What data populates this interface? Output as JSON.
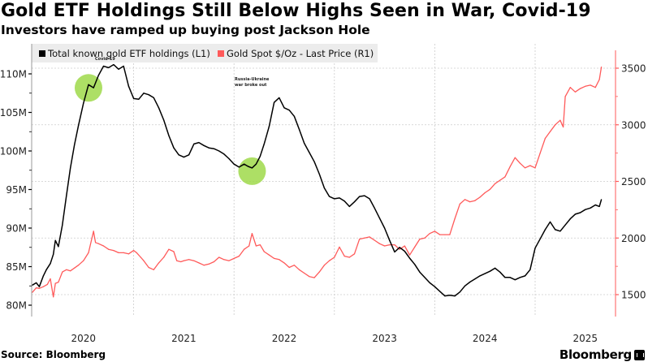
{
  "header": {
    "title": "Gold ETF Holdings Still Below Highs Seen in War, Covid-19",
    "subtitle": "Investors have ramped up buying post Jackson Hole"
  },
  "footer": {
    "source": "Source: Bloomberg",
    "brand": "Bloomberg",
    "brand_icon": "bloomberg-terminal-icon"
  },
  "colors": {
    "etf_line": "#000000",
    "gold_line": "#ff5a5a",
    "right_axis": "#ff5a5a",
    "highlight_circle": "#9fd94a",
    "grid": "#cccccc",
    "legend_bg": "#ececec"
  },
  "chart_data": {
    "type": "line",
    "title": "Gold ETF Holdings Still Below Highs Seen in War, Covid-19",
    "subtitle": "Investors have ramped up buying post Jackson Hole",
    "xlabel": "",
    "x_unit": "year (fractional)",
    "x_ticks": [
      "2020",
      "2021",
      "2022",
      "2023",
      "2024",
      "2025"
    ],
    "xlim": [
      2019.99,
      2025.75
    ],
    "grid": true,
    "legend_position": "top-left",
    "y_axes": {
      "L1": {
        "ticks": [
          "80M",
          "85M",
          "90M",
          "95M",
          "100M",
          "105M",
          "110M"
        ],
        "tick_values": [
          80,
          85,
          90,
          95,
          100,
          105,
          110
        ],
        "ylim": [
          78.2,
          112.8
        ],
        "unit": "million oz"
      },
      "R1": {
        "ticks": [
          "1500",
          "2000",
          "2500",
          "3000",
          "3500"
        ],
        "tick_values": [
          1500,
          2000,
          2500,
          3000,
          3500
        ],
        "ylim": [
          1410,
          3620
        ],
        "unit": "USD/oz"
      }
    },
    "series": [
      {
        "name": "Total known gold ETF holdings (L1)",
        "axis": "L1",
        "x": [
          2019.99,
          2020.03,
          2020.06,
          2020.1,
          2020.13,
          2020.17,
          2020.2,
          2020.22,
          2020.25,
          2020.29,
          2020.33,
          2020.37,
          2020.41,
          2020.45,
          2020.5,
          2020.55,
          2020.6,
          2020.65,
          2020.7,
          2020.75,
          2020.8,
          2020.85,
          2020.9,
          2020.95,
          2021.0,
          2021.05,
          2021.1,
          2021.15,
          2021.2,
          2021.25,
          2021.3,
          2021.35,
          2021.4,
          2021.45,
          2021.5,
          2021.55,
          2021.6,
          2021.65,
          2021.7,
          2021.75,
          2021.8,
          2021.85,
          2021.9,
          2021.95,
          2022.0,
          2022.05,
          2022.1,
          2022.14,
          2022.18,
          2022.22,
          2022.26,
          2022.3,
          2022.35,
          2022.4,
          2022.45,
          2022.5,
          2022.55,
          2022.6,
          2022.65,
          2022.7,
          2022.75,
          2022.8,
          2022.85,
          2022.9,
          2022.95,
          2023.0,
          2023.05,
          2023.1,
          2023.15,
          2023.2,
          2023.25,
          2023.3,
          2023.35,
          2023.4,
          2023.45,
          2023.5,
          2023.55,
          2023.6,
          2023.65,
          2023.7,
          2023.75,
          2023.8,
          2023.85,
          2023.9,
          2023.95,
          2024.0,
          2024.05,
          2024.1,
          2024.15,
          2024.2,
          2024.25,
          2024.3,
          2024.35,
          2024.4,
          2024.45,
          2024.5,
          2024.55,
          2024.6,
          2024.65,
          2024.7,
          2024.75,
          2024.8,
          2024.85,
          2024.9,
          2024.95,
          2025.0,
          2025.05,
          2025.1,
          2025.15,
          2025.2,
          2025.25,
          2025.3,
          2025.35,
          2025.4,
          2025.45,
          2025.5,
          2025.55,
          2025.6,
          2025.64,
          2025.66
        ],
        "values": [
          82.6,
          82.9,
          82.4,
          83.8,
          84.6,
          85.4,
          86.6,
          88.4,
          87.6,
          90.4,
          94.2,
          97.8,
          100.8,
          103.3,
          106.2,
          108.6,
          108.2,
          109.8,
          111.0,
          110.8,
          111.2,
          110.6,
          111.0,
          108.4,
          106.8,
          106.7,
          107.5,
          107.3,
          106.9,
          105.6,
          104.0,
          102.0,
          100.4,
          99.5,
          99.2,
          99.5,
          100.9,
          101.1,
          100.7,
          100.4,
          100.3,
          100.0,
          99.6,
          99.0,
          98.3,
          97.9,
          98.3,
          98.0,
          97.8,
          98.3,
          99.3,
          100.9,
          103.2,
          106.3,
          106.9,
          105.6,
          105.3,
          104.5,
          102.8,
          101.0,
          99.8,
          98.6,
          97.0,
          95.2,
          94.1,
          93.8,
          93.9,
          93.5,
          92.8,
          93.4,
          94.1,
          94.2,
          93.8,
          92.6,
          91.3,
          90.0,
          88.4,
          86.9,
          87.5,
          87.0,
          86.1,
          85.3,
          84.3,
          83.6,
          82.9,
          82.4,
          81.8,
          81.2,
          81.3,
          81.2,
          81.7,
          82.5,
          83.0,
          83.4,
          83.8,
          84.1,
          84.4,
          84.8,
          84.3,
          83.6,
          83.6,
          83.3,
          83.6,
          83.8,
          84.6,
          87.4,
          88.6,
          89.8,
          90.8,
          89.8,
          89.6,
          90.4,
          91.2,
          91.8,
          92.0,
          92.4,
          92.6,
          93.0,
          92.8,
          93.7
        ]
      },
      {
        "name": "Gold Spot $/Oz - Last Price (R1)",
        "axis": "R1",
        "x": [
          2019.99,
          2020.03,
          2020.06,
          2020.1,
          2020.14,
          2020.17,
          2020.2,
          2020.22,
          2020.25,
          2020.29,
          2020.33,
          2020.37,
          2020.41,
          2020.45,
          2020.5,
          2020.55,
          2020.6,
          2020.62,
          2020.65,
          2020.7,
          2020.75,
          2020.8,
          2020.85,
          2020.9,
          2020.95,
          2021.0,
          2021.03,
          2021.07,
          2021.1,
          2021.15,
          2021.2,
          2021.25,
          2021.3,
          2021.35,
          2021.4,
          2021.43,
          2021.47,
          2021.5,
          2021.55,
          2021.6,
          2021.65,
          2021.7,
          2021.75,
          2021.8,
          2021.85,
          2021.9,
          2021.95,
          2022.0,
          2022.05,
          2022.1,
          2022.15,
          2022.18,
          2022.22,
          2022.26,
          2022.3,
          2022.35,
          2022.4,
          2022.45,
          2022.5,
          2022.55,
          2022.6,
          2022.65,
          2022.7,
          2022.75,
          2022.8,
          2022.85,
          2022.9,
          2022.95,
          2023.0,
          2023.05,
          2023.1,
          2023.15,
          2023.2,
          2023.25,
          2023.3,
          2023.35,
          2023.4,
          2023.45,
          2023.5,
          2023.55,
          2023.6,
          2023.65,
          2023.7,
          2023.75,
          2023.8,
          2023.85,
          2023.9,
          2023.95,
          2024.0,
          2024.05,
          2024.1,
          2024.15,
          2024.2,
          2024.25,
          2024.3,
          2024.35,
          2024.4,
          2024.45,
          2024.5,
          2024.55,
          2024.6,
          2024.65,
          2024.7,
          2024.75,
          2024.8,
          2024.85,
          2024.9,
          2024.95,
          2025.0,
          2025.05,
          2025.1,
          2025.15,
          2025.2,
          2025.25,
          2025.28,
          2025.3,
          2025.35,
          2025.4,
          2025.45,
          2025.5,
          2025.55,
          2025.6,
          2025.64,
          2025.66
        ],
        "values": [
          1520,
          1560,
          1555,
          1570,
          1590,
          1640,
          1480,
          1600,
          1610,
          1700,
          1720,
          1710,
          1735,
          1760,
          1800,
          1870,
          2060,
          1960,
          1950,
          1930,
          1900,
          1890,
          1870,
          1870,
          1860,
          1890,
          1870,
          1830,
          1800,
          1740,
          1720,
          1780,
          1830,
          1900,
          1880,
          1800,
          1790,
          1800,
          1810,
          1800,
          1780,
          1760,
          1770,
          1790,
          1830,
          1810,
          1800,
          1820,
          1840,
          1900,
          1930,
          2040,
          1930,
          1940,
          1880,
          1850,
          1820,
          1810,
          1780,
          1740,
          1760,
          1720,
          1690,
          1660,
          1650,
          1700,
          1760,
          1800,
          1830,
          1920,
          1840,
          1830,
          1860,
          1990,
          2000,
          2010,
          1980,
          1950,
          1930,
          1940,
          1940,
          1900,
          1930,
          1850,
          1920,
          1990,
          2000,
          2040,
          2060,
          2030,
          2030,
          2030,
          2170,
          2300,
          2340,
          2320,
          2330,
          2360,
          2400,
          2430,
          2480,
          2510,
          2540,
          2630,
          2710,
          2660,
          2620,
          2640,
          2620,
          2750,
          2880,
          2940,
          3000,
          3040,
          2980,
          3250,
          3330,
          3290,
          3320,
          3340,
          3350,
          3330,
          3400,
          3510
        ]
      }
    ],
    "annotations": [
      {
        "text": "Covid-19",
        "x": 2020.55,
        "series": "Total known gold ETF holdings (L1)",
        "marker": "green-circle"
      },
      {
        "text": "Russia-Ukraine war broke out",
        "x": 2022.18,
        "series": "Total known gold ETF holdings (L1)",
        "marker": "green-circle"
      }
    ]
  }
}
